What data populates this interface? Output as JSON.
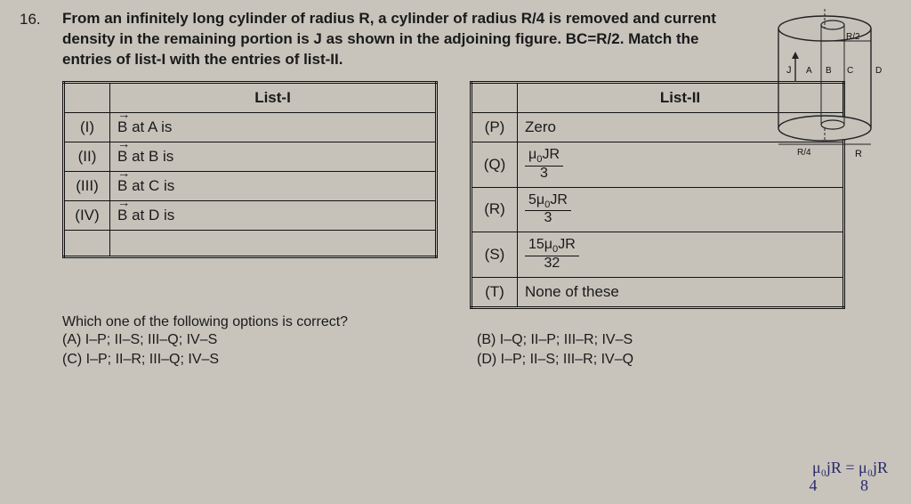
{
  "question": {
    "number": "16.",
    "text": "From an infinitely long cylinder of radius R, a cylinder of radius R/4 is removed and current density in the remaining portion is J as shown in the adjoining figure. BC=R/2. Match the entries of list-I with the entries of list-II."
  },
  "figure": {
    "labels": {
      "J": "J",
      "A": "A",
      "B": "B",
      "C": "C",
      "D": "D",
      "R2": "R/2",
      "R4": "R/4",
      "R": "R"
    },
    "stroke": "#222222",
    "fill": "#c6c2ba"
  },
  "lists": {
    "left_header": "List-I",
    "right_header": "List-II",
    "left": [
      {
        "tag": "(I)",
        "html": "<span class=\"vec\">B</span> at A is"
      },
      {
        "tag": "(II)",
        "html": "<span class=\"vec\">B</span> at B is"
      },
      {
        "tag": "(III)",
        "html": "<span class=\"vec\">B</span> at C is"
      },
      {
        "tag": "(IV)",
        "html": "<span class=\"vec\">B</span> at D is"
      }
    ],
    "right": [
      {
        "tag": "(P)",
        "html": "Zero"
      },
      {
        "tag": "(Q)",
        "html": "<span class=\"frac\"><span class=\"num\">μ<sub>0</sub>JR</span><span class=\"den\">3</span></span>"
      },
      {
        "tag": "(R)",
        "html": "<span class=\"frac\"><span class=\"num\">5μ<sub>0</sub>JR</span><span class=\"den\">3</span></span>"
      },
      {
        "tag": "(S)",
        "html": "<span class=\"frac\"><span class=\"num\">15μ<sub>0</sub>JR</span><span class=\"den\">32</span></span>"
      },
      {
        "tag": "(T)",
        "html": "None of these"
      }
    ]
  },
  "prompt": "Which one of the following options is correct?",
  "options": {
    "A": "(A) I–P; II–S; III–Q; IV–S",
    "B": "(B) I–Q; II–P; III–R; IV–S",
    "C": "(C) I–P; II–R; III–Q; IV–S",
    "D": "(D) I–P; II–S; III–R; IV–Q"
  },
  "handwriting": {
    "line1": "μ₀jR = μ₀jR",
    "line2": "4        8"
  },
  "colors": {
    "page_bg": "#c8c4bc",
    "cell_bg": "#c6c2ba",
    "border": "#111111"
  }
}
